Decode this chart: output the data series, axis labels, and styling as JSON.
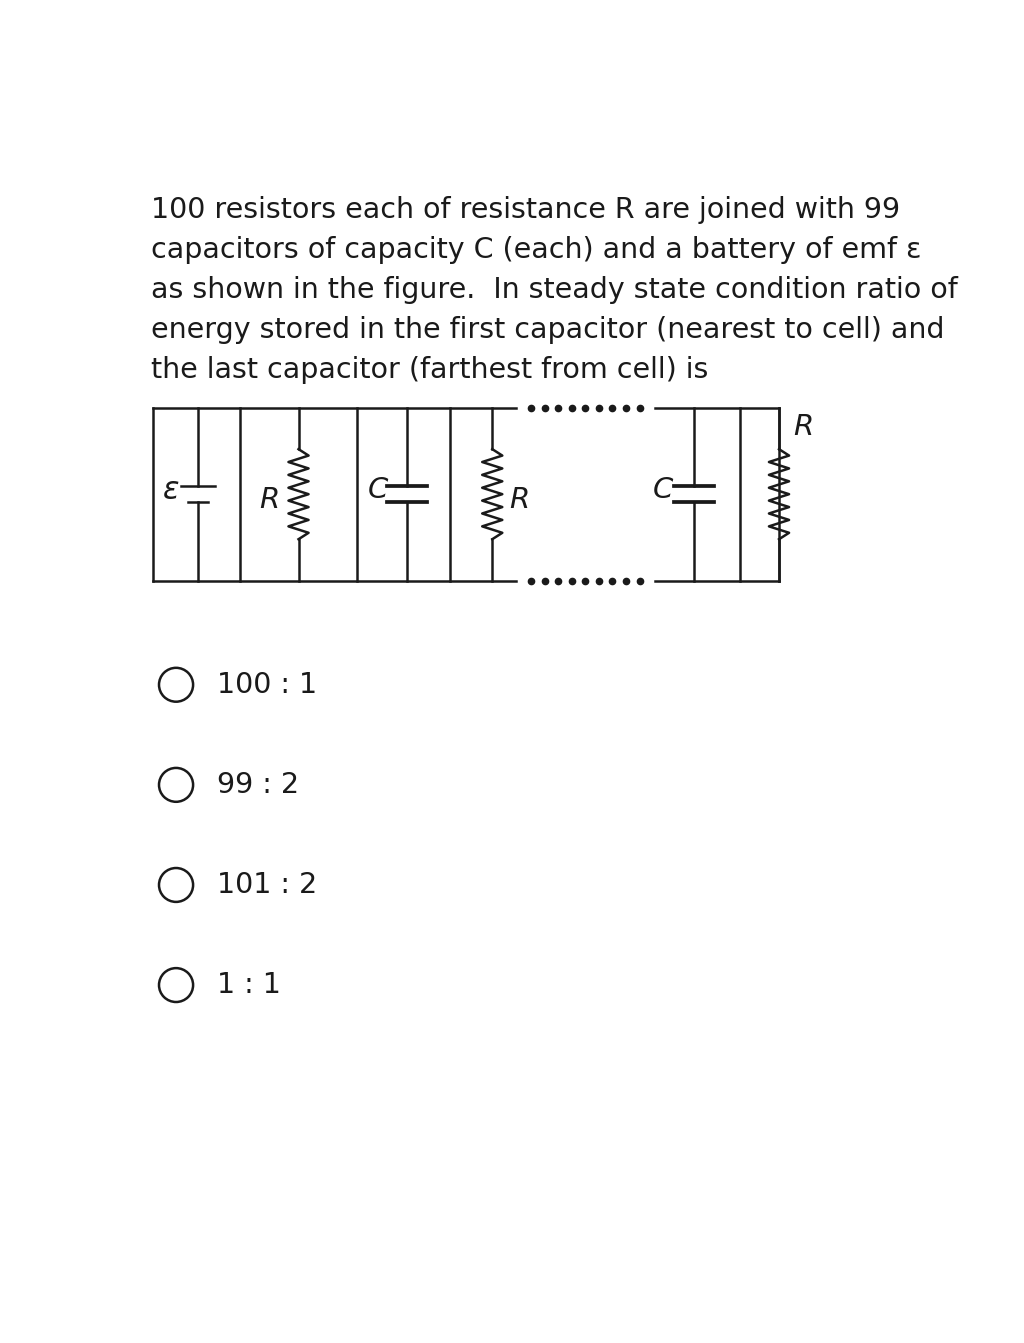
{
  "question_text_lines": [
    "100 resistors each of resistance R are joined with 99",
    "capacitors of capacity C (each) and a battery of emf ε",
    "as shown in the figure.  In steady state condition ratio of",
    "energy stored in the first capacitor (nearest to cell) and",
    "the last capacitor (farthest from cell) is"
  ],
  "options": [
    "100 : 1",
    "99 : 2",
    "101 : 2",
    "1 : 1"
  ],
  "bg_color": "#ffffff",
  "text_color": "#1a1a1a",
  "font_size_question": 20.5,
  "font_size_option": 20.5,
  "circuit_color": "#1a1a1a",
  "circuit_lw": 1.8
}
